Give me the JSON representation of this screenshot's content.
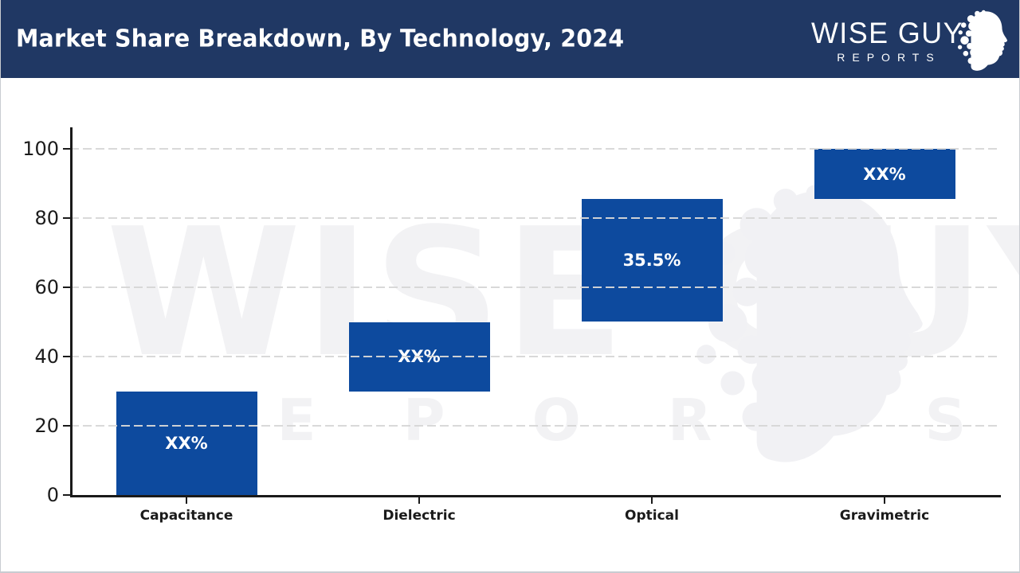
{
  "header": {
    "title": "Market Share Breakdown, By Technology, 2024",
    "logo": {
      "line1": "WISE GUY",
      "line2": "REPORTS"
    }
  },
  "watermark": {
    "line1": "WISE GUY",
    "line2": "R E P O R T S"
  },
  "chart_data": {
    "type": "bar",
    "subtype": "floating-waterfall",
    "title": "Market Share Breakdown, By Technology, 2024",
    "categories": [
      "Capacitance",
      "Dielectric",
      "Optical",
      "Gravimetric"
    ],
    "bars": [
      {
        "category": "Capacitance",
        "start": 0,
        "end": 30,
        "label": "XX%"
      },
      {
        "category": "Dielectric",
        "start": 30,
        "end": 50,
        "label": "XX%"
      },
      {
        "category": "Optical",
        "start": 50,
        "end": 85.5,
        "label": "35.5%"
      },
      {
        "category": "Gravimetric",
        "start": 85.5,
        "end": 100,
        "label": "XX%"
      }
    ],
    "xlabel": "",
    "ylabel": "",
    "ylim": [
      0,
      100
    ],
    "yticks": [
      0,
      20,
      40,
      60,
      80,
      100
    ],
    "grid": "dashed-horizontal",
    "legend": "none",
    "bar_color": "#0d4a9e",
    "value_label_color": "#ffffff"
  },
  "colors": {
    "header_bg": "#203864",
    "bar": "#0d4a9e",
    "grid": "#d9d9d9",
    "axis": "#1a1a1a",
    "watermark": "#f2f2f4"
  }
}
